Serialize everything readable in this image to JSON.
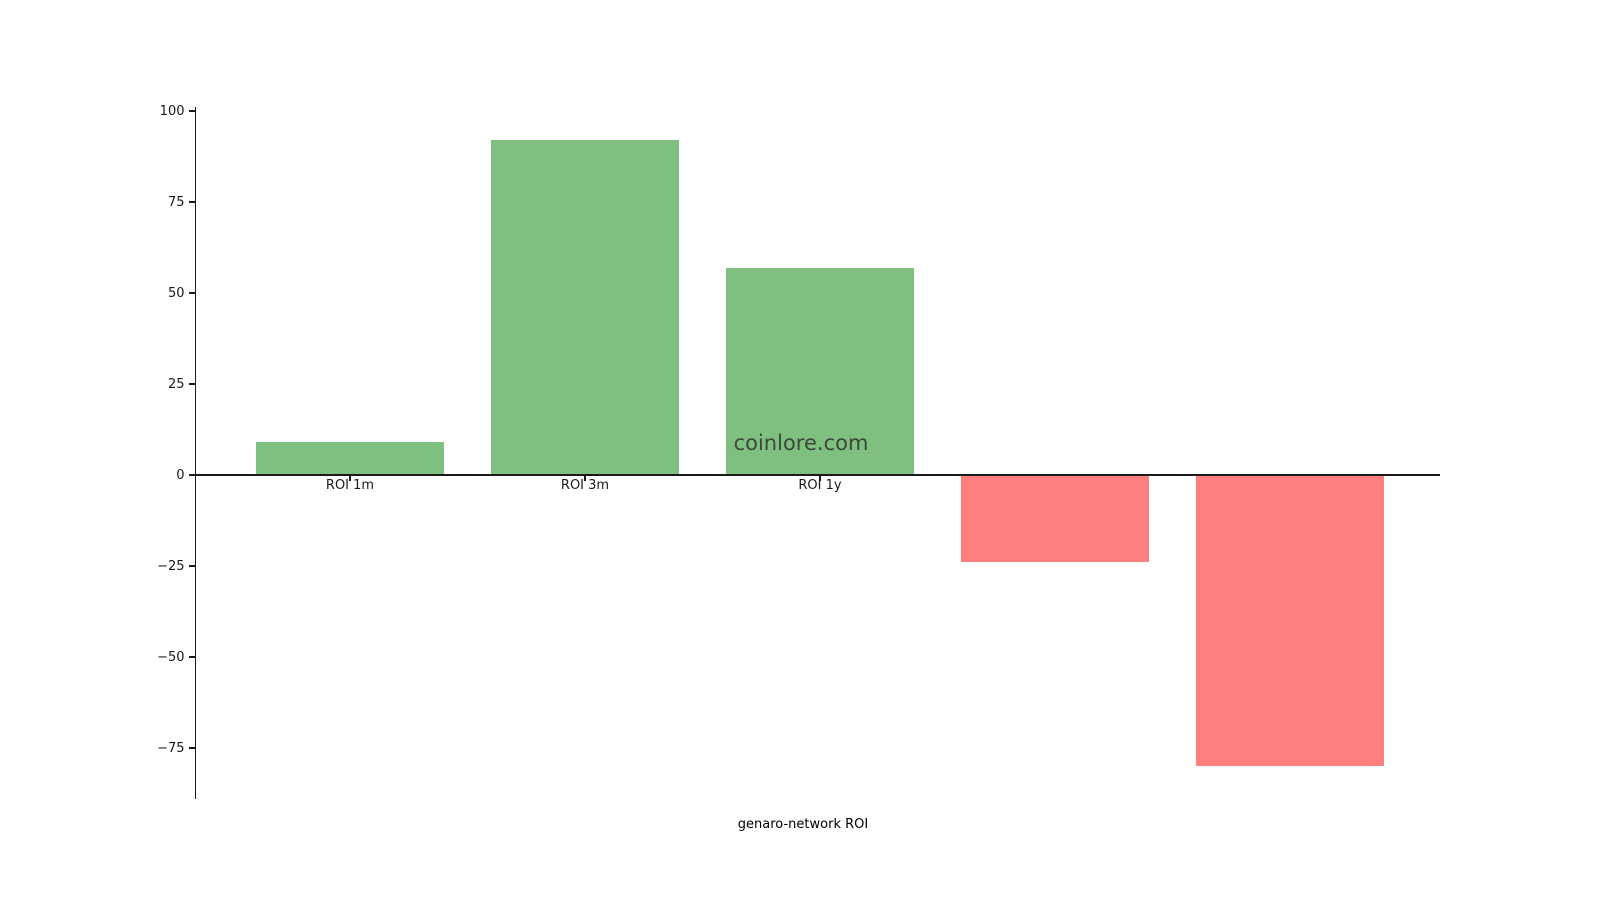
{
  "page": {
    "background": "#ffffff"
  },
  "watermark": {
    "text": "coinlore.com"
  },
  "chart_data": {
    "type": "bar",
    "title": "genaro-network ROI",
    "categories": [
      "ROI 1m",
      "ROI 3m",
      "ROI 1y",
      "",
      ""
    ],
    "values": [
      9,
      92,
      57,
      -24,
      -80
    ],
    "positive_color": "#7fbf7f",
    "negative_color": "#ff7f7f",
    "axis_color": "#1a1a1a",
    "y_ticks": [
      100,
      75,
      50,
      25,
      0,
      -25,
      -50,
      -75
    ],
    "ylim": [
      -89,
      101
    ],
    "xlabel": "",
    "ylabel": "",
    "grid": false,
    "legend": false,
    "notes": "tick labels of the two negative bars are hidden behind the bars"
  }
}
